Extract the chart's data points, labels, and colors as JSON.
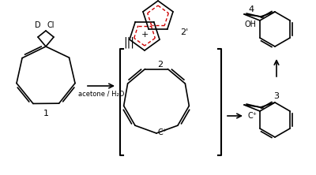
{
  "background": "#ffffff",
  "arrow_color": "#000000",
  "line_color": "#000000",
  "red_color": "#cc0000",
  "label1": "1",
  "label2": "2",
  "label2p": "2'",
  "label3": "3",
  "label4": "4",
  "reagent": "acetone / H₂O",
  "cation": "C⁺",
  "plus": "+",
  "oh": "OH",
  "D": "D",
  "Cl": "Cl"
}
